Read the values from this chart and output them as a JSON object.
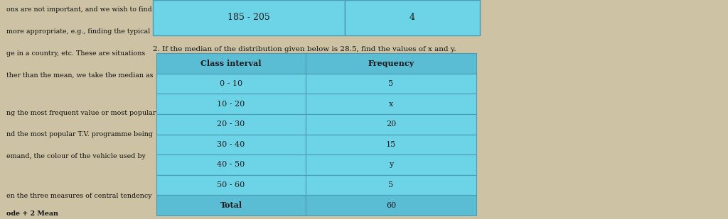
{
  "top_row": {
    "class_interval": "185 - 205",
    "frequency": "4"
  },
  "question_text": "2. If the median of the distribution given below is 28.5, find the values of x and y.",
  "table_headers": [
    "Class interval",
    "Frequency"
  ],
  "table_rows": [
    [
      "0 - 10",
      "5"
    ],
    [
      "10 - 20",
      "x"
    ],
    [
      "20 - 30",
      "20"
    ],
    [
      "30 - 40",
      "15"
    ],
    [
      "40 - 50",
      "y"
    ],
    [
      "50 - 60",
      "5"
    ]
  ],
  "table_total": [
    "Total",
    "60"
  ],
  "left_text_lines": [
    [
      "ons are not important, and we wish to find",
      false
    ],
    [
      "more appropriate, e.g., finding the typical",
      false
    ],
    [
      "ge in a country, etc. These are situations",
      false
    ],
    [
      "ther than the mean, we take the median as",
      false
    ],
    [
      "",
      false
    ],
    [
      "ng the most frequent value or most popular",
      false
    ],
    [
      "nd the most popular T.V. programme being",
      false
    ],
    [
      "emand, the colour of the vehicle used by",
      false
    ],
    [
      "",
      false
    ],
    [
      "en the three measures of central tendency",
      false
    ],
    [
      "ode + 2 Mean",
      true
    ]
  ],
  "header_bg": "#5bbdd4",
  "cell_bg": "#6dd4e8",
  "total_row_bg": "#5bbdd4",
  "top_table_bg": "#6dd4e8",
  "border_color": "#4a9ab0",
  "text_color": "#1a1a1a",
  "dark_text": "#111111",
  "left_bg": "#d6ccb0",
  "page_bg": "#cdc3a4",
  "right_bg": "#b8895a"
}
